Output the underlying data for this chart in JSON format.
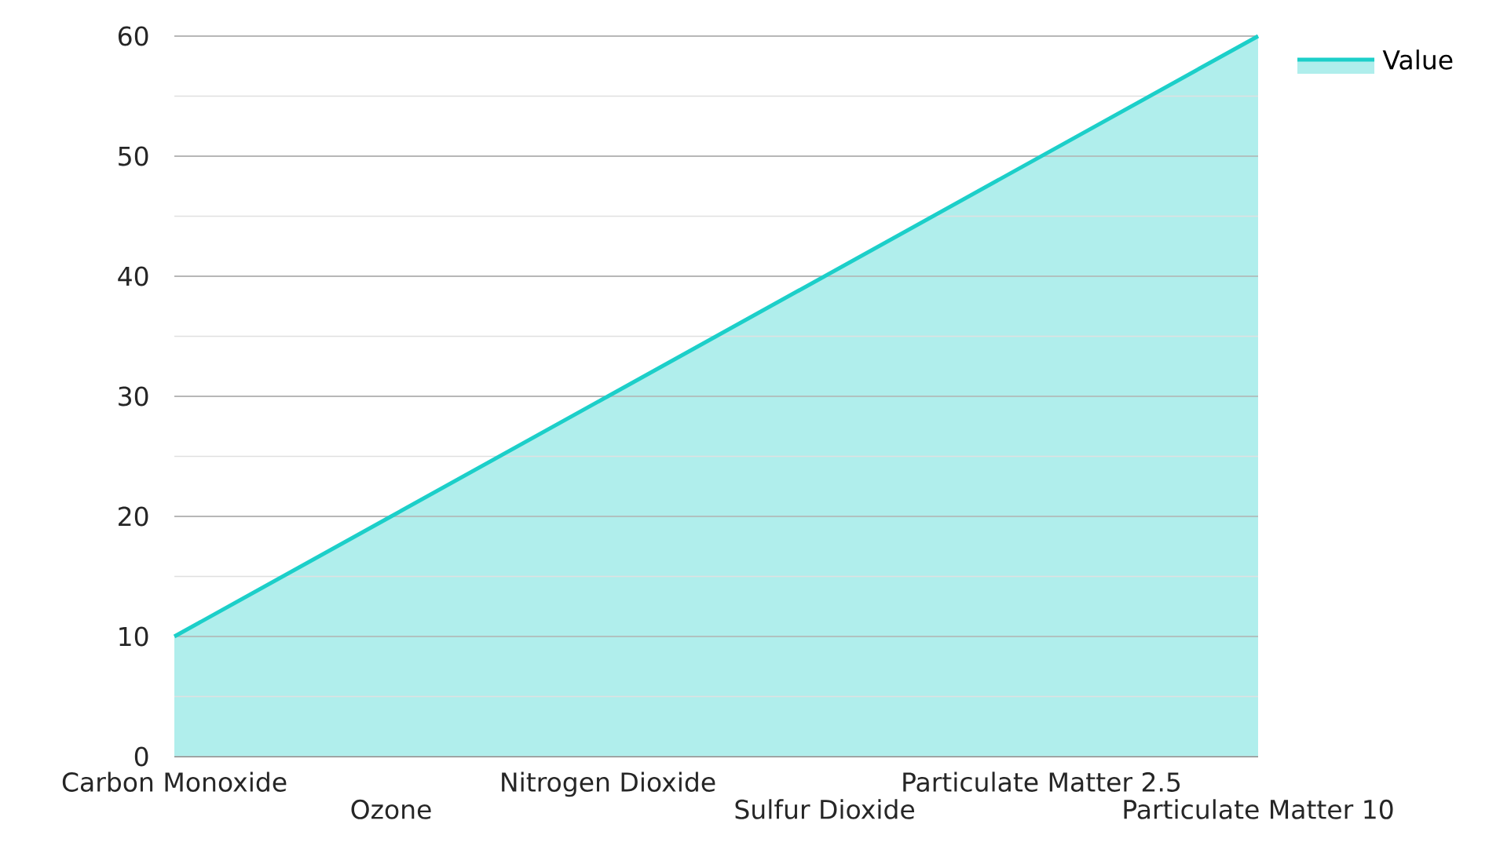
{
  "chart_data": {
    "type": "area",
    "categories": [
      "Carbon Monoxide",
      "Ozone",
      "Nitrogen Dioxide",
      "Sulfur Dioxide",
      "Particulate Matter 2.5",
      "Particulate Matter 10"
    ],
    "series": [
      {
        "name": "Value",
        "color": "#1ccfc9",
        "values": [
          10,
          20,
          30,
          40,
          50,
          60
        ]
      }
    ],
    "ylim": [
      0,
      60
    ],
    "yticks": [
      0,
      {
        "value": 5,
        "label": null
      },
      10,
      {
        "value": 15,
        "label": null
      },
      20,
      {
        "value": 25,
        "label": null
      },
      30,
      {
        "value": 35,
        "label": null
      },
      40,
      {
        "value": 45,
        "label": null
      },
      50,
      {
        "value": 55,
        "label": null
      },
      60
    ],
    "grid": "y",
    "legend": "top right"
  }
}
